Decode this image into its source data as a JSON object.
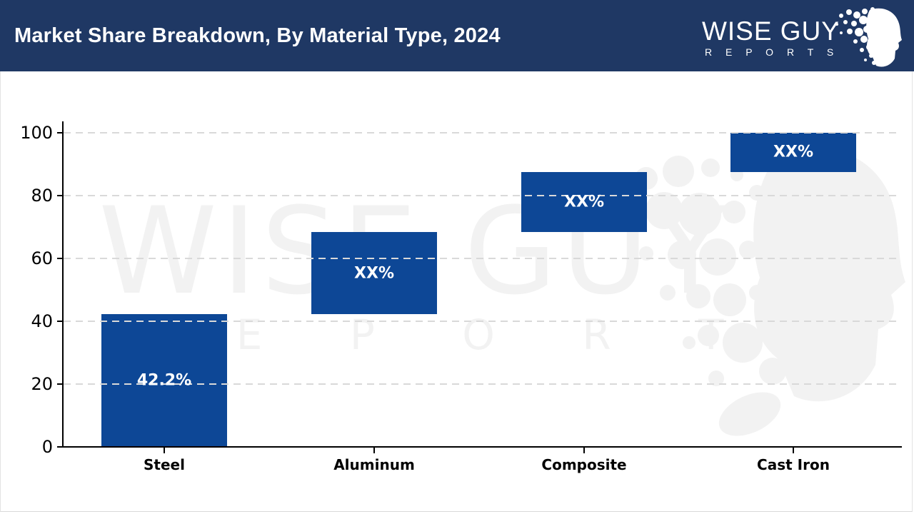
{
  "header": {
    "title": "Market Share Breakdown, By Material Type, 2024",
    "logo": {
      "line1": "WISE GUY",
      "line2": "R E P O R T S"
    }
  },
  "watermark": {
    "line1": "WISE GUY",
    "line2": "R E P O R T S"
  },
  "chart_data": {
    "type": "bar",
    "subtype": "waterfall",
    "title": "Market Share Breakdown, By Material Type, 2024",
    "categories": [
      "Steel",
      "Aluminum",
      "Composite",
      "Cast Iron"
    ],
    "bars": [
      {
        "category": "Steel",
        "start": 0,
        "end": 42.2,
        "label": "42.2%"
      },
      {
        "category": "Aluminum",
        "start": 42.2,
        "end": 68.4,
        "label": "XX%"
      },
      {
        "category": "Composite",
        "start": 68.4,
        "end": 87.6,
        "label": "XX%"
      },
      {
        "category": "Cast Iron",
        "start": 87.6,
        "end": 100,
        "label": "XX%"
      }
    ],
    "xlabel": "",
    "ylabel": "",
    "ylim": [
      0,
      100
    ],
    "yticks": [
      0,
      20,
      40,
      60,
      80,
      100
    ],
    "grid": "horizontal-dashed",
    "legend": "none",
    "bar_color": "#0d4796",
    "bar_label_color": "#ffffff",
    "axis_color": "#000000",
    "gridline_color": "#d9d9d9"
  },
  "colors": {
    "header_bg": "#1f3864",
    "body_bg": "#ffffff",
    "watermark": "#f2f2f2"
  }
}
